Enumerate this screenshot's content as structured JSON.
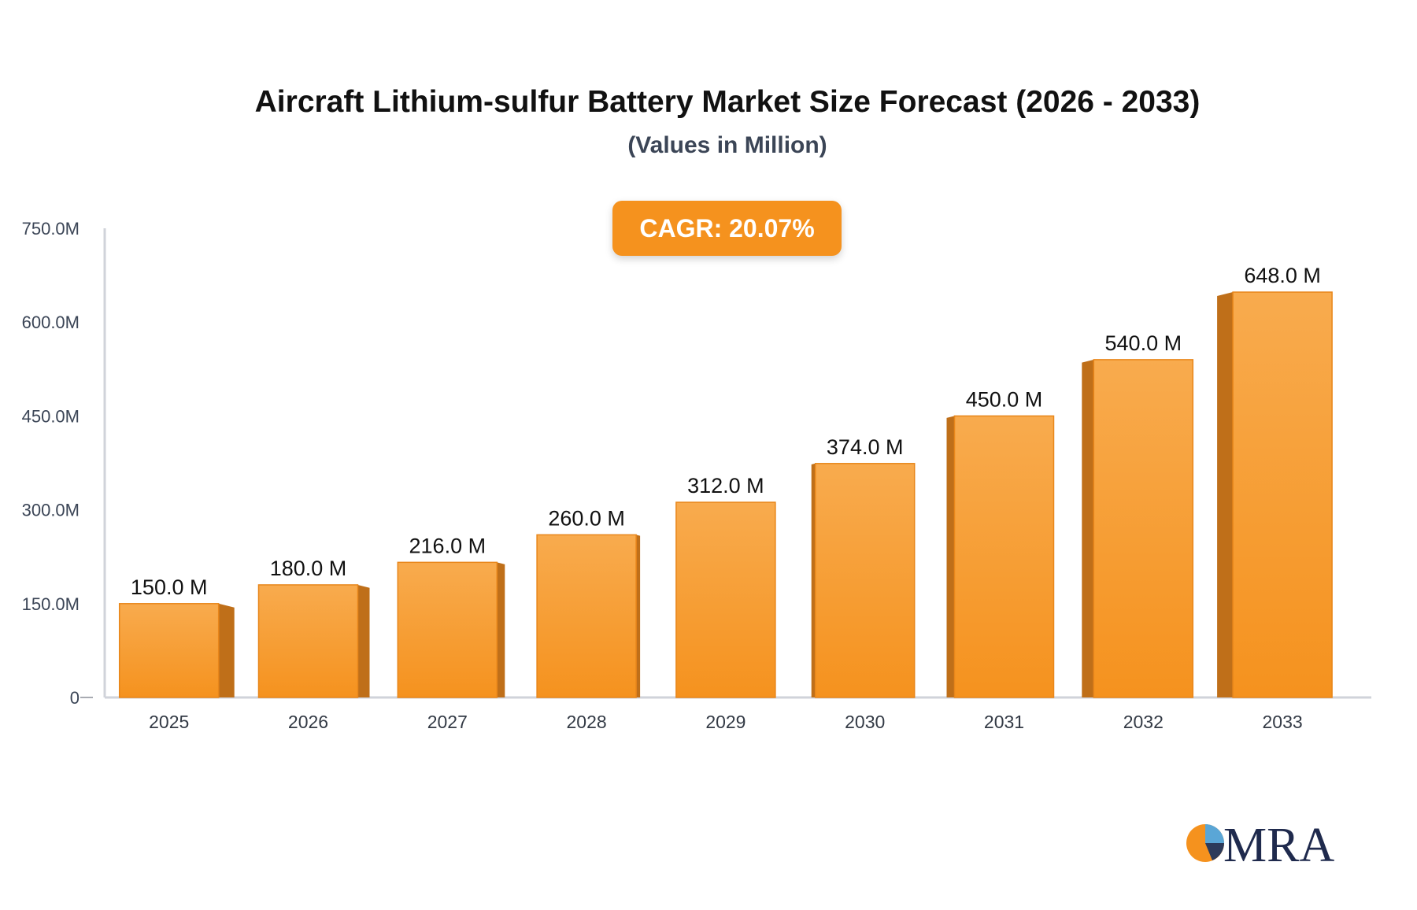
{
  "chart_data": {
    "type": "bar",
    "title": "Aircraft Lithium-sulfur Battery Market Size Forecast (2026 - 2033)",
    "subtitle": "(Values in Million)",
    "annotation": "CAGR: 20.07%",
    "categories": [
      "2025",
      "2026",
      "2027",
      "2028",
      "2029",
      "2030",
      "2031",
      "2032",
      "2033"
    ],
    "values": [
      150.0,
      180.0,
      216.0,
      260.0,
      312.0,
      374.0,
      450.0,
      540.0,
      648.0
    ],
    "value_labels": [
      "150.0 M",
      "180.0 M",
      "216.0 M",
      "260.0 M",
      "312.0 M",
      "374.0 M",
      "450.0 M",
      "540.0 M",
      "648.0 M"
    ],
    "ylim": [
      0,
      750
    ],
    "yticks": [
      0,
      150,
      300,
      450,
      600,
      750
    ],
    "ytick_labels": [
      "0",
      "150.0M",
      "300.0M",
      "450.0M",
      "600.0M",
      "750.0M"
    ],
    "xlabel": "",
    "ylabel": "",
    "grid": false,
    "colors": {
      "bar_top": "#f8ab4e",
      "bar_bottom": "#f5921e",
      "bar_side": "#bf6f19",
      "badge": "#f5921e",
      "axis": "#d0d3da"
    }
  },
  "logo": {
    "text": "MRA"
  }
}
